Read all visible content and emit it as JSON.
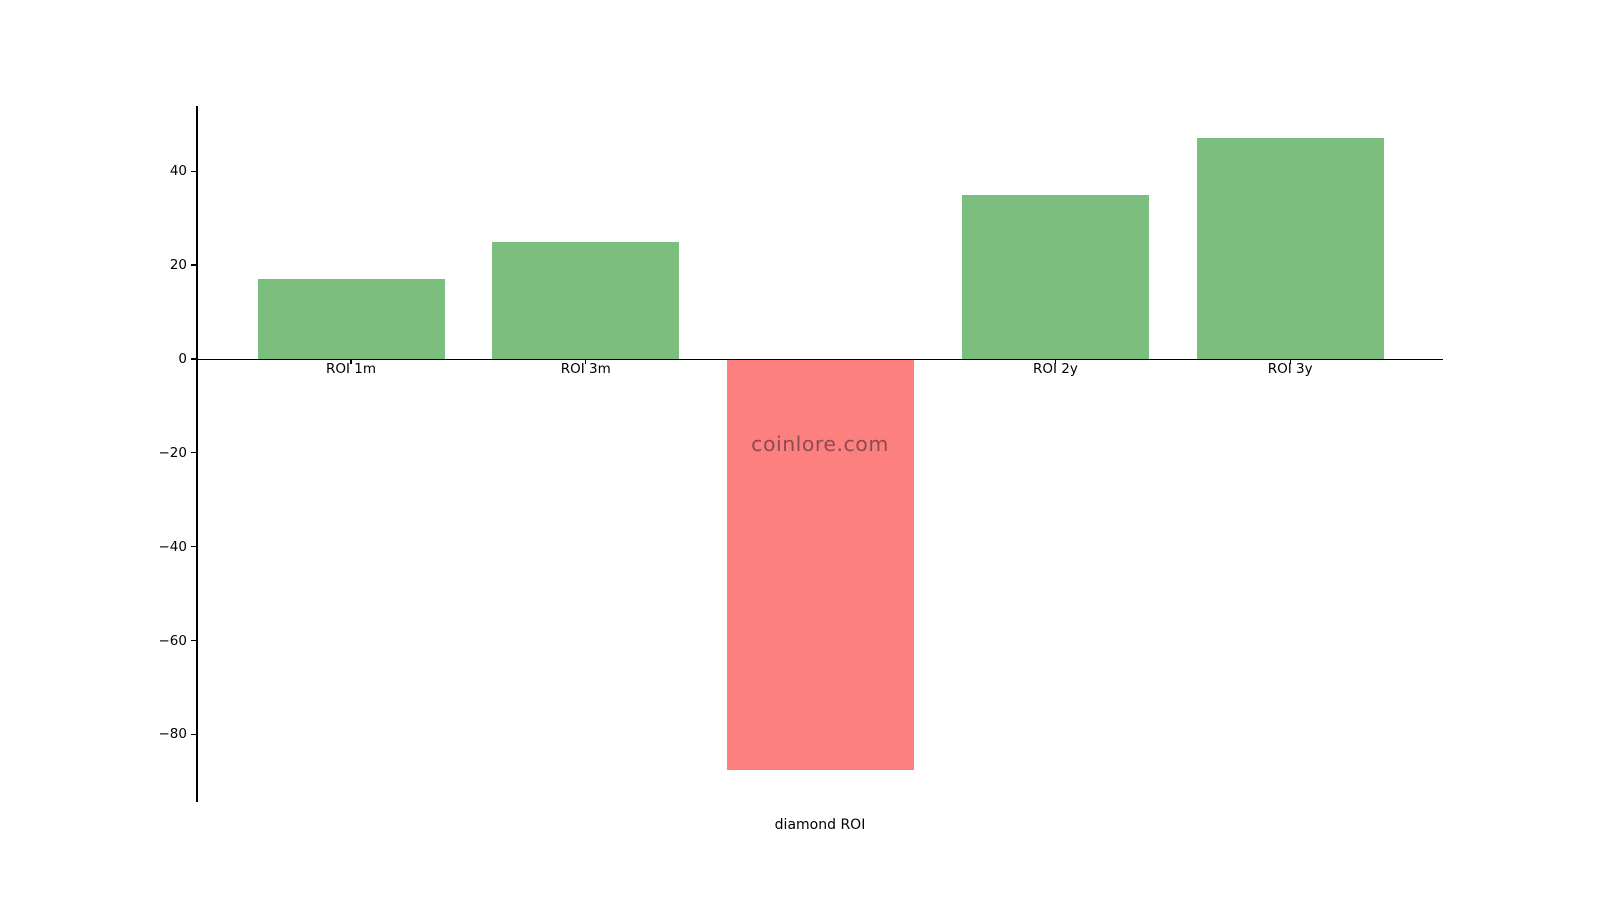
{
  "figure": {
    "background": "#ffffff",
    "axis_color": "#000000"
  },
  "watermark": {
    "text": "coinlore.com",
    "color": "#8c4b50"
  },
  "chart_data": {
    "type": "bar",
    "title": "",
    "xlabel": "diamond ROI",
    "ylabel": "",
    "categories": [
      "ROI 1m",
      "ROI 3m",
      "",
      "ROI 2y",
      "ROI 3y"
    ],
    "values": [
      17,
      25,
      -87.5,
      35,
      47
    ],
    "bar_colors": [
      "#7cbe7e",
      "#7cbe7e",
      "#fc8080",
      "#7cbe7e",
      "#7cbe7e"
    ],
    "positive_color": "#7cbe7e",
    "negative_color": "#fc8080",
    "y_ticks": [
      40,
      20,
      0,
      -20,
      -40,
      -60,
      -80
    ],
    "ylim": [
      -94.2,
      53.9
    ],
    "baseline": 0,
    "grid": false,
    "legend": null,
    "notes": {
      "middle_bar_label_hidden": "the third bar covers its own x tick and label"
    }
  }
}
